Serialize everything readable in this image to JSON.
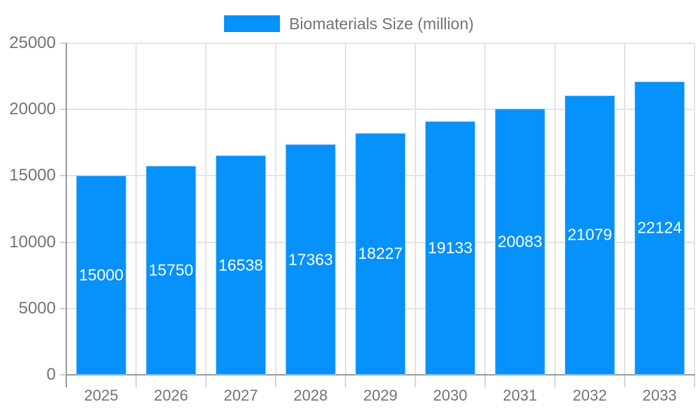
{
  "legend": {
    "label": "Biomaterials Size (million)"
  },
  "chart_data": {
    "type": "bar",
    "title": "",
    "xlabel": "",
    "ylabel": "",
    "categories": [
      "2025",
      "2026",
      "2027",
      "2028",
      "2029",
      "2030",
      "2031",
      "2032",
      "2033"
    ],
    "series": [
      {
        "name": "Biomaterials Size (million)",
        "values": [
          15000,
          15750,
          16538,
          17363,
          18227,
          19133,
          20083,
          21079,
          22124
        ]
      }
    ],
    "value_labels_shown": true,
    "ylim": [
      0,
      25000
    ],
    "yticks": [
      0,
      5000,
      10000,
      15000,
      20000,
      25000
    ],
    "grid": true,
    "legend_position": "top",
    "colors": {
      "bar": "#0691fb",
      "value_label": "#ffffff",
      "grid": "#e4e4e4",
      "axis": "#9a9a9a",
      "tick_text": "#737373"
    }
  }
}
